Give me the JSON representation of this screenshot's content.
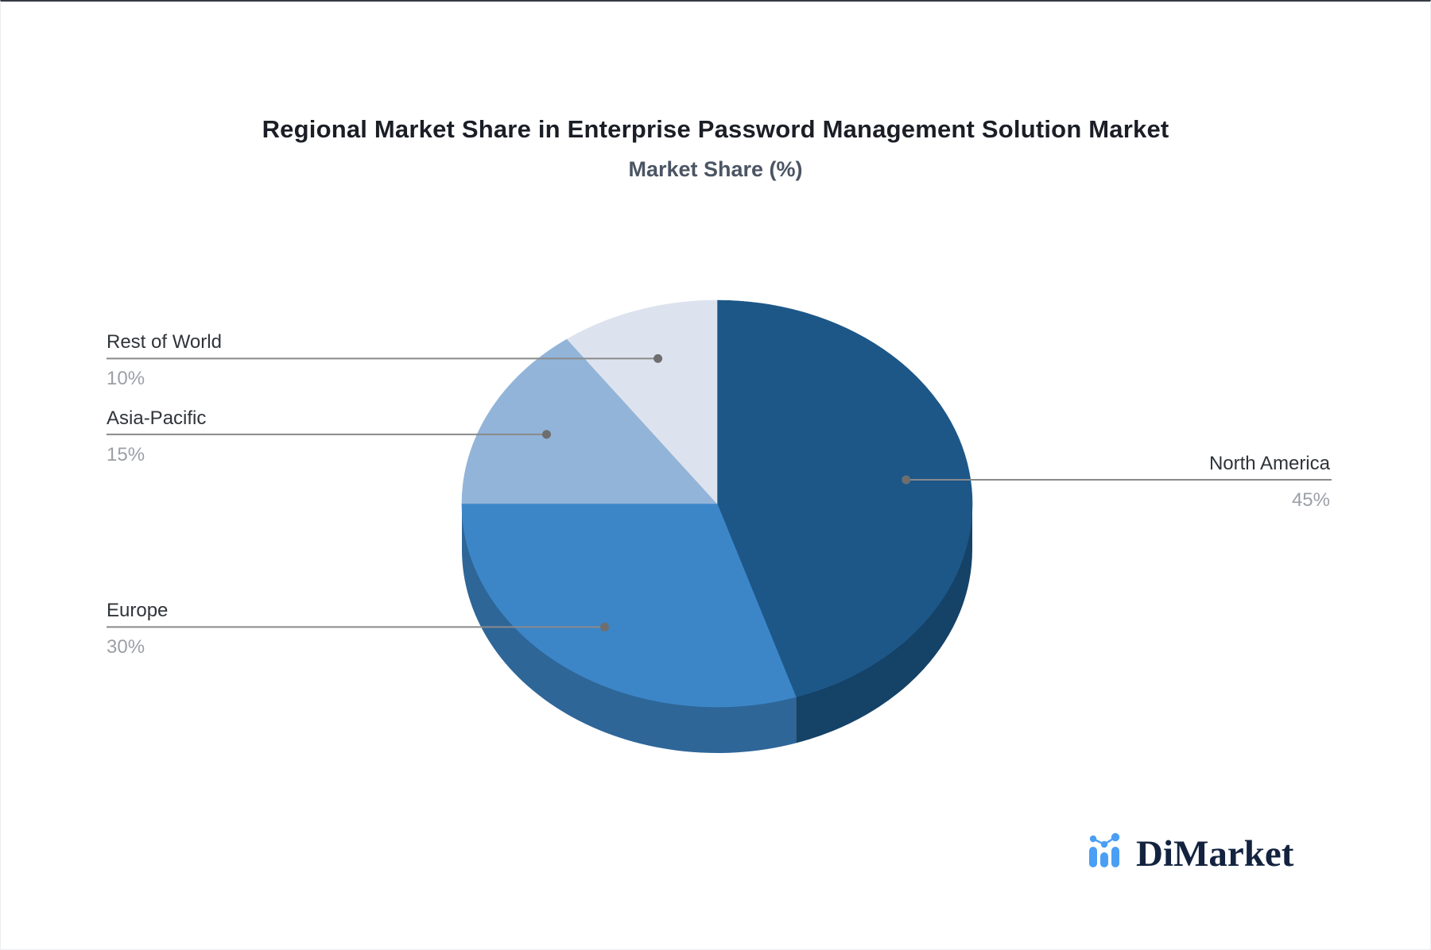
{
  "page": {
    "title": "Regional Market Share in Enterprise Password Management Solution Market",
    "subtitle": "Market Share (%)"
  },
  "chart_data": {
    "type": "pie",
    "title": "Regional Market Share in Enterprise Password Management Solution Market",
    "subtitle": "Market Share (%)",
    "unit": "%",
    "direction": "clockwise",
    "start_angle_deg": 0,
    "effect_3d": true,
    "labels_style": "leader-lines",
    "segments": [
      {
        "label": "North America",
        "value": 45,
        "display_value": "45%",
        "color": "#1c5788"
      },
      {
        "label": "Europe",
        "value": 30,
        "display_value": "30%",
        "color": "#3c86c8"
      },
      {
        "label": "Asia-Pacific",
        "value": 15,
        "display_value": "15%",
        "color": "#92b4d9"
      },
      {
        "label": "Rest of World",
        "value": 10,
        "display_value": "10%",
        "color": "#dde3ee"
      }
    ],
    "leader_line_color": "#8a8a8a",
    "leader_dot_color": "#6e6e6e",
    "label_name_color": "#303439",
    "label_value_color": "#9ba0a6"
  },
  "branding": {
    "logo_text": "DiMarket",
    "logo_icon": "mini-bar-chart-icon",
    "logo_icon_color": "#4a9ff5",
    "logo_text_color": "#13233f"
  }
}
